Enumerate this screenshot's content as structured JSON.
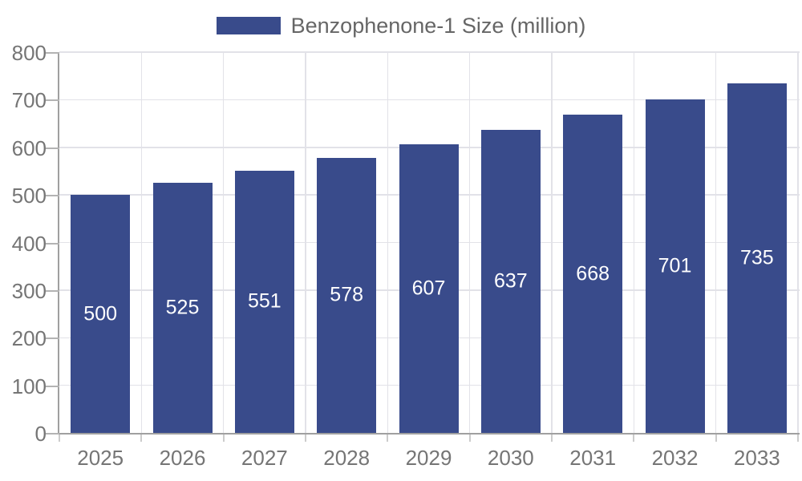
{
  "legend": {
    "label": "Benzophenone-1 Size (million)"
  },
  "chart_data": {
    "type": "bar",
    "title": "",
    "xlabel": "",
    "ylabel": "",
    "series_name": "Benzophenone-1 Size (million)",
    "categories": [
      "2025",
      "2026",
      "2027",
      "2028",
      "2029",
      "2030",
      "2031",
      "2032",
      "2033"
    ],
    "values": [
      500,
      525,
      551,
      578,
      607,
      637,
      668,
      701,
      735
    ],
    "bar_labels": [
      "500",
      "525",
      "551",
      "578",
      "607",
      "637",
      "668",
      "701",
      "735"
    ],
    "ylim": [
      0,
      800
    ],
    "ytick_step": 100,
    "yticks": [
      0,
      100,
      200,
      300,
      400,
      500,
      600,
      700,
      800
    ],
    "grid": true,
    "legend_position": "top",
    "bar_label_position": "middle"
  },
  "colors": {
    "bar": "#394b8b",
    "grid": "#e2e2e8",
    "axis": "#a0a0a0",
    "tick_label": "#757575",
    "legend_text": "#666666",
    "bar_label": "#ffffff",
    "background": "#ffffff"
  }
}
